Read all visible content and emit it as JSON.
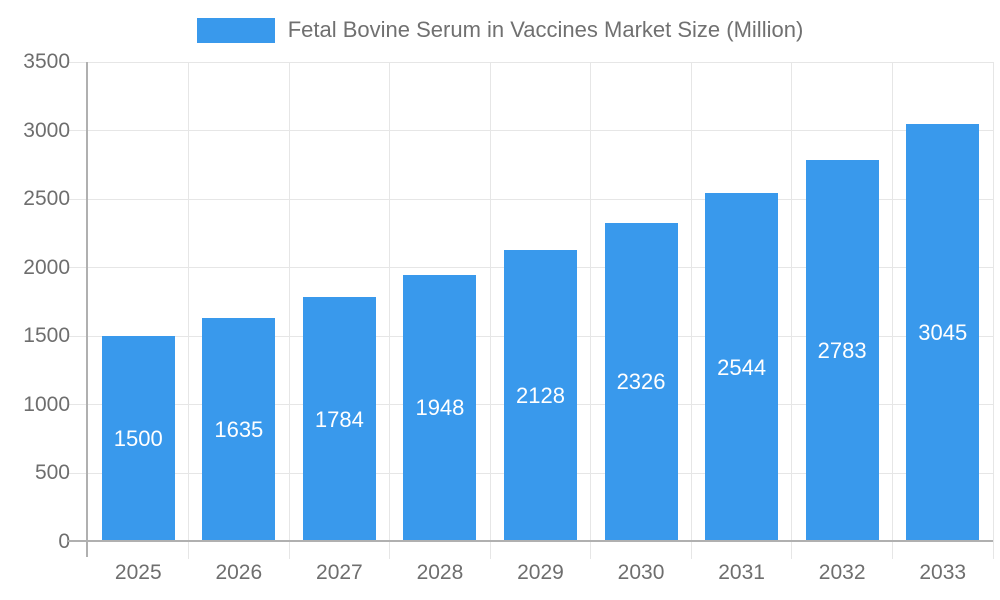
{
  "chart_data": {
    "type": "bar",
    "title": "Fetal Bovine Serum in Vaccines Market Size (Million)",
    "categories": [
      "2025",
      "2026",
      "2027",
      "2028",
      "2029",
      "2030",
      "2031",
      "2032",
      "2033"
    ],
    "values": [
      1500,
      1635,
      1784,
      1948,
      2128,
      2326,
      2544,
      2783,
      3045
    ],
    "xlabel": "",
    "ylabel": "",
    "ylim": [
      0,
      3500
    ],
    "yticks": [
      0,
      500,
      1000,
      1500,
      2000,
      2500,
      3000,
      3500
    ],
    "grid": true,
    "legend_position": "top",
    "value_label_position": "inside-center",
    "colors": {
      "bar": "#3999ec",
      "gridline": "#e6e6e6",
      "axis_line": "#b0b0b0",
      "axis_text": "#6e6e6e",
      "title_text": "#707070",
      "value_text": "#ffffff"
    }
  }
}
